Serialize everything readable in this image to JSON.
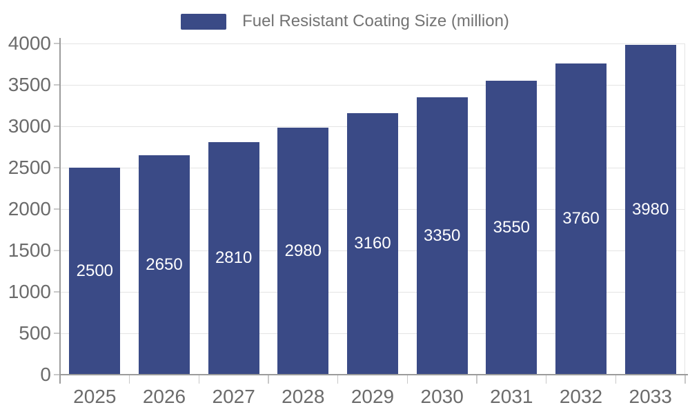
{
  "legend": {
    "label": "Fuel Resistant Coating Size (million)"
  },
  "colors": {
    "bar": "#3A4A86",
    "bar_label": "#FFFFFF",
    "legend_text": "#737373",
    "axis_text": "#6B6B6B",
    "axis_line": "#9B9B9B",
    "tick_line": "#C8C8C8",
    "grid_line": "#E4E4E4",
    "background": "#FFFFFF"
  },
  "chart_data": {
    "type": "bar",
    "title": "Fuel Resistant Coating Size (million)",
    "legend": [
      "Fuel Resistant Coating Size (million)"
    ],
    "legend_position": "top-center",
    "categories": [
      "2025",
      "2026",
      "2027",
      "2028",
      "2029",
      "2030",
      "2031",
      "2032",
      "2033"
    ],
    "series": [
      {
        "name": "Fuel Resistant Coating Size (million)",
        "values": [
          2500,
          2650,
          2810,
          2980,
          3160,
          3350,
          3550,
          3760,
          3980
        ]
      }
    ],
    "value_labels": "inside-center-white",
    "xlabel": "",
    "ylabel": "",
    "ylim": [
      0,
      4000
    ],
    "yticks": [
      0,
      500,
      1000,
      1500,
      2000,
      2500,
      3000,
      3500,
      4000
    ],
    "grid": true
  }
}
